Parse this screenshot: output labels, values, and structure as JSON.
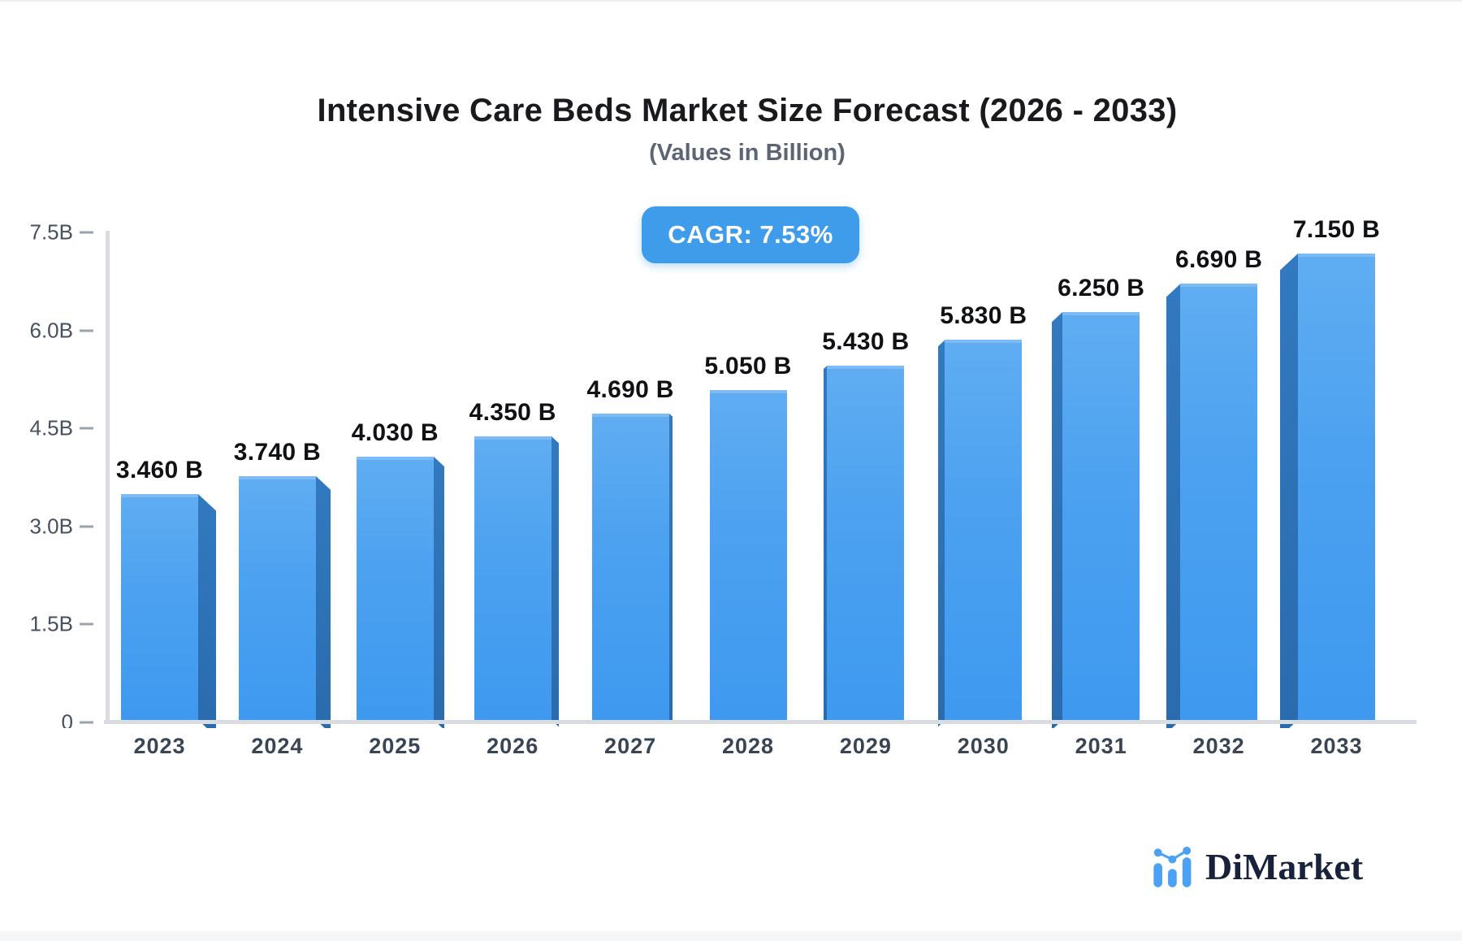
{
  "header": {
    "title": "Intensive Care Beds Market Size Forecast (2026 - 2033)",
    "subtitle": "(Values in Billion)",
    "cagr_label": "CAGR: 7.53%"
  },
  "chart_data": {
    "type": "bar",
    "title": "Intensive Care Beds Market Size Forecast (2026 - 2033)",
    "subtitle": "(Values in Billion)",
    "cagr": "7.53%",
    "categories": [
      "2023",
      "2024",
      "2025",
      "2026",
      "2027",
      "2028",
      "2029",
      "2030",
      "2031",
      "2032",
      "2033"
    ],
    "values": [
      3.46,
      3.74,
      4.03,
      4.35,
      4.69,
      5.05,
      5.43,
      5.83,
      6.25,
      6.69,
      7.15
    ],
    "value_labels": [
      "3.460 B",
      "3.740 B",
      "4.030 B",
      "4.350 B",
      "4.690 B",
      "5.050 B",
      "5.430 B",
      "5.830 B",
      "6.250 B",
      "6.690 B",
      "7.150 B"
    ],
    "xlabel": "",
    "ylabel": "",
    "ylim": [
      0,
      7.5
    ],
    "yticks": [
      {
        "label": "7.5B",
        "value": 7.5
      },
      {
        "label": "6.0B",
        "value": 6.0
      },
      {
        "label": "4.5B",
        "value": 4.5
      },
      {
        "label": "3.0B",
        "value": 3.0
      },
      {
        "label": "1.5B",
        "value": 1.5
      },
      {
        "label": "0",
        "value": 0.0
      }
    ],
    "grid": "off",
    "legend": "none",
    "bar_color": "#3e99ef",
    "bar_side_color": "#2e74b6",
    "accent_color": "#3e9ceb"
  },
  "footer": {
    "brand_name": "DiMarket",
    "brand_icon": "mini-bar-line-chart-icon",
    "brand_color": "#4ba1f4"
  }
}
